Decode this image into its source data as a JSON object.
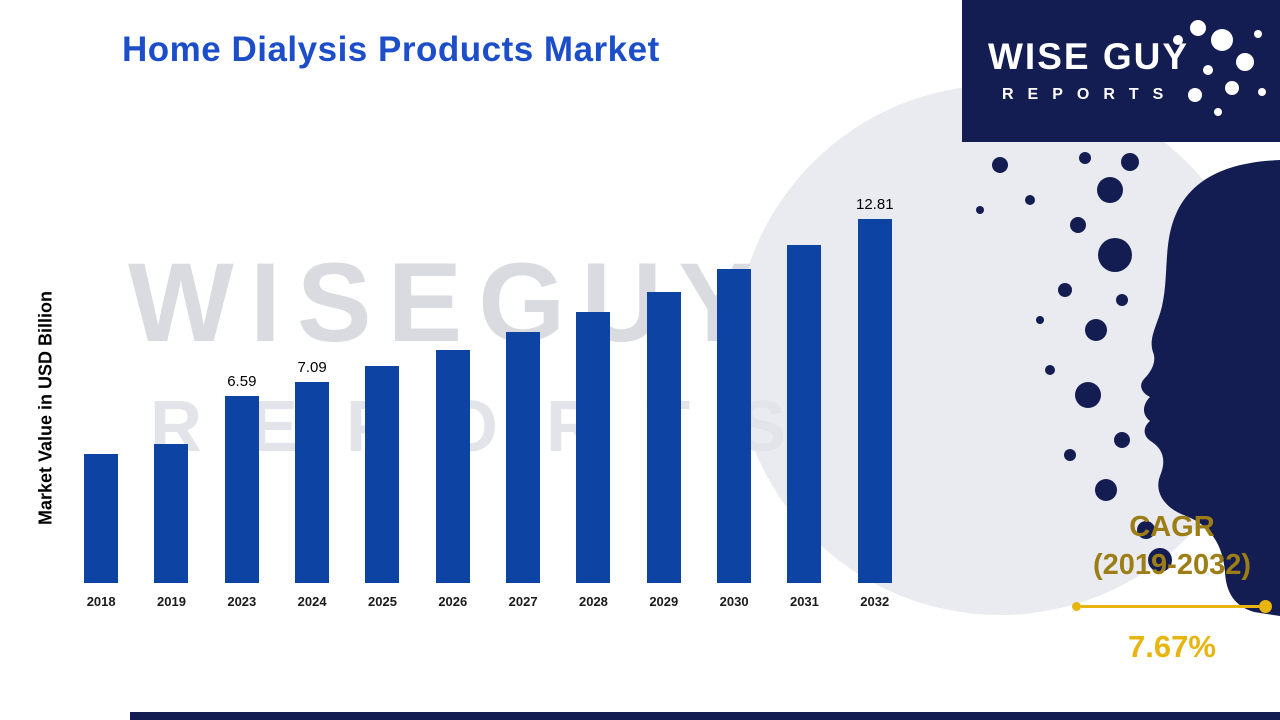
{
  "title": "Home Dialysis Products Market",
  "logo": {
    "line1": "WISE GUY",
    "line2": "REPORTS",
    "icon": "wiseguy-face-icon"
  },
  "watermark": {
    "line1": "WISEGUY",
    "line2": "REPORTS"
  },
  "cagr": {
    "label": "CAGR",
    "range": "(2019-2032)",
    "value": "7.67%"
  },
  "colors": {
    "bar": "#0d44a4",
    "navy": "#141d52",
    "gold": "#e7b50e",
    "cagr_text": "#9c7d16",
    "title": "#1b4ec8",
    "watermark": "#d9dbe0",
    "circle_bg": "#e9ebf0"
  },
  "chart_data": {
    "type": "bar",
    "title": "Home Dialysis Products Market",
    "xlabel": "",
    "ylabel": "Market Value in USD Billion",
    "unit": "USD Billion",
    "categories": [
      "2018",
      "2019",
      "2023",
      "2024",
      "2025",
      "2026",
      "2027",
      "2028",
      "2029",
      "2030",
      "2031",
      "2032"
    ],
    "values": [
      4.55,
      4.9,
      6.59,
      7.09,
      7.64,
      8.22,
      8.85,
      9.53,
      10.26,
      11.05,
      11.9,
      12.81
    ],
    "point_labels": [
      "",
      "",
      "6.59",
      "7.09",
      "",
      "",
      "",
      "",
      "",
      "",
      "",
      "12.81"
    ],
    "ylim": [
      0,
      14
    ],
    "grid": false,
    "legend": false,
    "cagr_percent": "7.67%",
    "cagr_period": "2019-2032"
  }
}
